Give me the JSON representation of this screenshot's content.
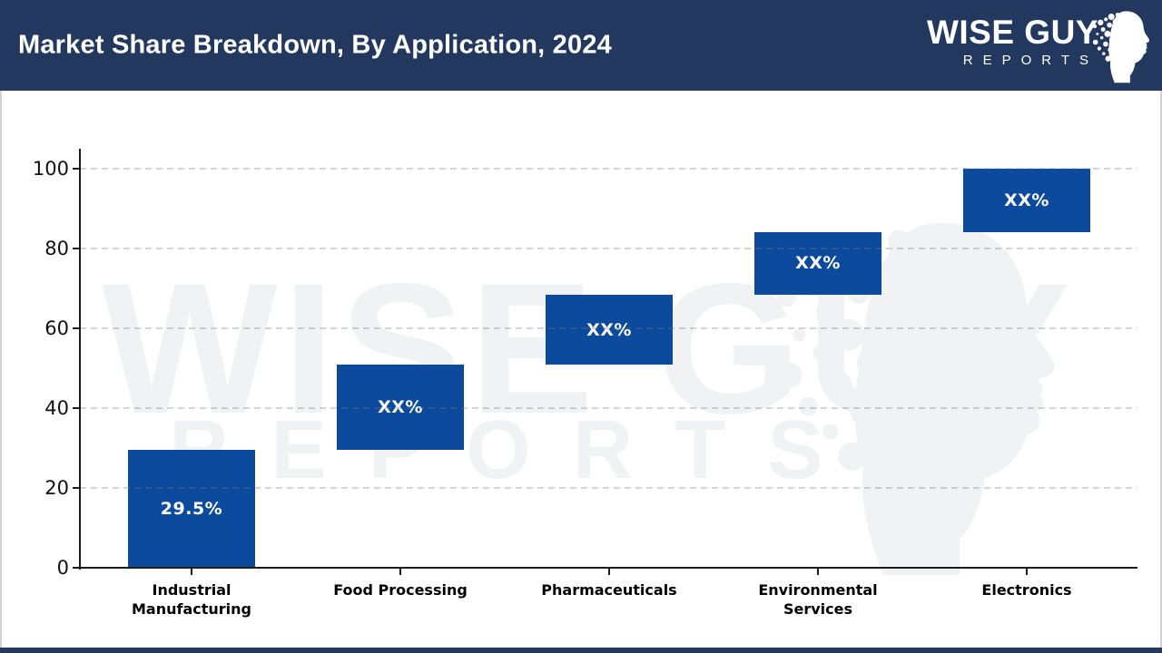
{
  "header": {
    "title": "Market Share Breakdown, By Application, 2024",
    "logo": {
      "brand_top": "WISE GUY",
      "brand_bottom": "REPORTS"
    }
  },
  "watermark": {
    "text_top": "WISE GUY",
    "text_bottom": "REPORTS"
  },
  "colors": {
    "header_bg": "#22385F",
    "bar": "#0B4A9C",
    "bar_label": "#FFFFFF",
    "grid": "#DEDEDE",
    "axis": "#1C1C1C",
    "tick_label": "#111111",
    "category_label": "#000000",
    "watermark": "#F0F2F4",
    "frame_border": "#D2D2D2",
    "background": "#FFFFFF"
  },
  "chart_data": {
    "type": "bar",
    "subtype": "floating-waterfall",
    "title": "Market Share Breakdown, By Application, 2024",
    "xlabel": "",
    "ylabel": "",
    "grid": "dashed-horizontal",
    "legend": "none",
    "ylim": [
      0,
      105
    ],
    "yticks": [
      0,
      20,
      40,
      60,
      80,
      100
    ],
    "categories": [
      {
        "name": "Industrial Manufacturing",
        "label_lines": [
          "Industrial",
          "Manufacturing"
        ]
      },
      {
        "name": "Food Processing",
        "label_lines": [
          "Food Processing"
        ]
      },
      {
        "name": "Pharmaceuticals",
        "label_lines": [
          "Pharmaceuticals"
        ]
      },
      {
        "name": "Environmental Services",
        "label_lines": [
          "Environmental",
          "Services"
        ]
      },
      {
        "name": "Electronics",
        "label_lines": [
          "Electronics"
        ]
      }
    ],
    "segments": [
      {
        "category": "Industrial Manufacturing",
        "start": 0,
        "end": 29.5,
        "size": 29.5,
        "label": "29.5%"
      },
      {
        "category": "Food Processing",
        "start": 29.5,
        "end": 50.8,
        "size": 21.3,
        "label": "XX%"
      },
      {
        "category": "Pharmaceuticals",
        "start": 50.8,
        "end": 68.5,
        "size": 17.7,
        "label": "XX%"
      },
      {
        "category": "Environmental Services",
        "start": 68.5,
        "end": 84.0,
        "size": 15.5,
        "label": "XX%"
      },
      {
        "category": "Electronics",
        "start": 84.0,
        "end": 100.0,
        "size": 16.0,
        "label": "XX%"
      }
    ]
  }
}
